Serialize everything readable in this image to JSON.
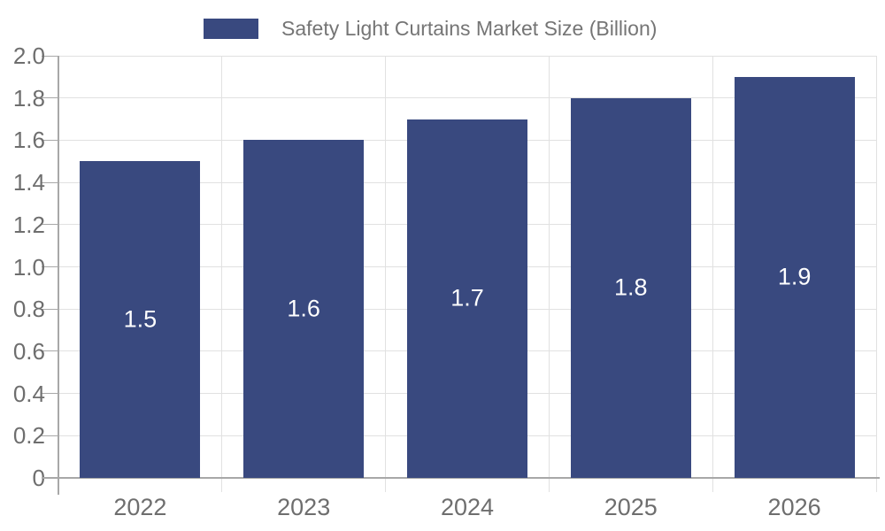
{
  "chart_data": {
    "type": "bar",
    "title": "Safety Light Curtains Market Size (Billion)",
    "series_name": "Safety Light Curtains Market Size (Billion)",
    "categories": [
      "2022",
      "2023",
      "2024",
      "2025",
      "2026"
    ],
    "values": [
      1.5,
      1.6,
      1.7,
      1.8,
      1.9
    ],
    "value_labels": [
      "1.5",
      "1.6",
      "1.7",
      "1.8",
      "1.9"
    ],
    "xlabel": "",
    "ylabel": "",
    "ylim": [
      0,
      2.0
    ],
    "ytick_step": 0.2,
    "ytick_labels": [
      "0",
      "0.2",
      "0.4",
      "0.6",
      "0.8",
      "1.0",
      "1.2",
      "1.4",
      "1.6",
      "1.8",
      "2.0"
    ],
    "grid": true,
    "legend_position": "top-center",
    "colors": {
      "bar": "#39497F",
      "value_label": "#FFFFFF",
      "grid_line": "#E1E1E1",
      "axis_line": "#A8A8A8",
      "tick_label": "#6E6E6E",
      "legend_text": "#757575",
      "background": "#FFFFFF"
    }
  }
}
